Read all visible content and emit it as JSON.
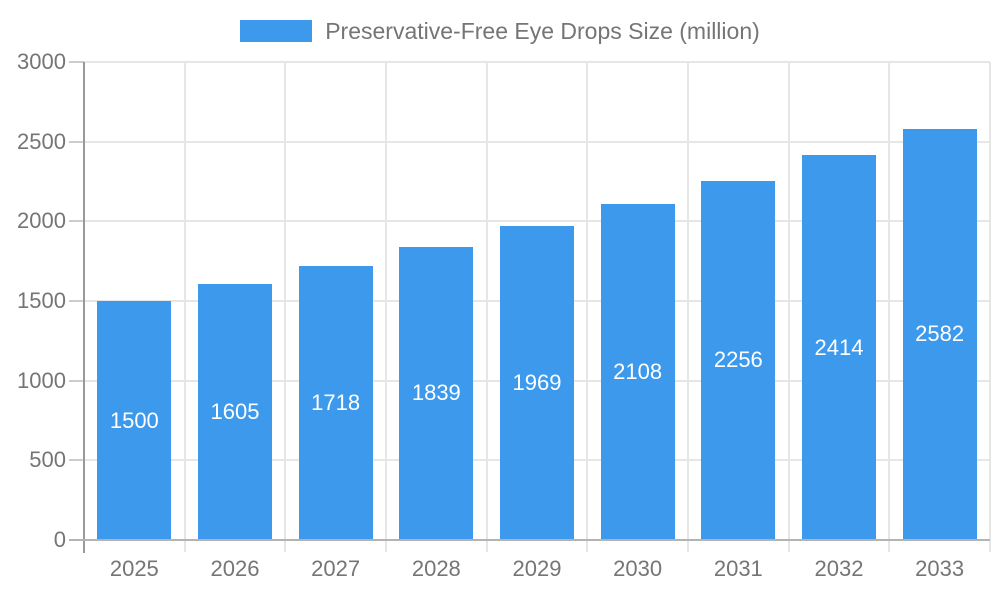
{
  "legend": {
    "series_label": "Preservative-Free Eye Drops Size (million)"
  },
  "chart_data": {
    "type": "bar",
    "title": "Preservative-Free Eye Drops Size (million)",
    "series_name": "Preservative-Free Eye Drops Size (million)",
    "categories": [
      "2025",
      "2026",
      "2027",
      "2028",
      "2029",
      "2030",
      "2031",
      "2032",
      "2033"
    ],
    "values": [
      1500,
      1605,
      1718,
      1839,
      1969,
      2108,
      2256,
      2414,
      2582
    ],
    "xlabel": "",
    "ylabel": "",
    "ylim": [
      0,
      3000
    ],
    "yticks": [
      0,
      500,
      1000,
      1500,
      2000,
      2500,
      3000
    ],
    "grid": true,
    "legend_position": "top",
    "value_labels": "inside-center"
  },
  "colors": {
    "bar": "#3D99EC",
    "axis_text": "#757575",
    "grid_line": "#e6e6e6",
    "axis_line": "#999999",
    "baseline": "#b3b3b3",
    "value_label": "#ffffff"
  }
}
